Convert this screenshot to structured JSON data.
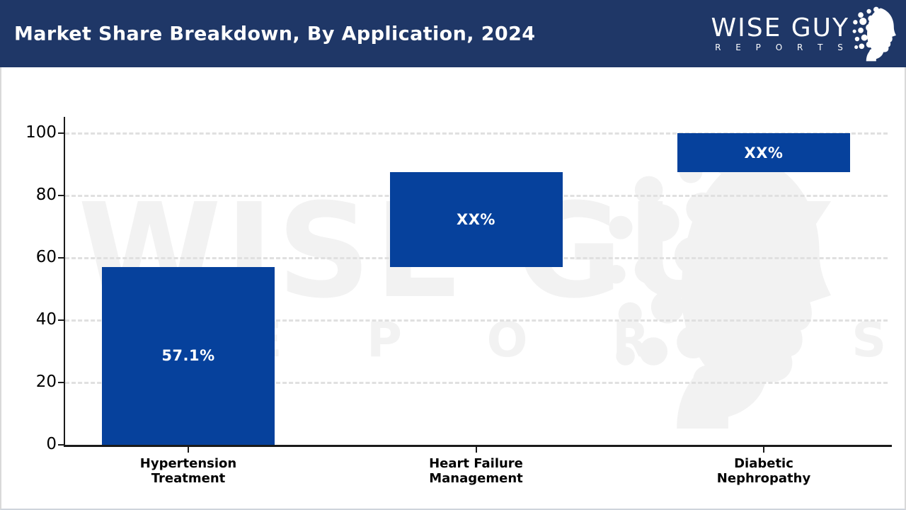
{
  "header": {
    "title": "Market Share Breakdown, By Application, 2024",
    "logo": {
      "line1": "WISE GUY",
      "line2": "R E P O R T S",
      "head_icon": "dotted-head-profile"
    }
  },
  "watermark": {
    "line1": "WISE GUY",
    "line2": "R E P O R T S",
    "head_icon": "dotted-head-profile"
  },
  "colors": {
    "header_bg": "#1f3767",
    "bar": "#06419c",
    "bar_label_text": "#ffffff",
    "watermark": "#f2f2f2",
    "gridline": "#e0e0e0",
    "axis": "#1a1a1a"
  },
  "chart_data": {
    "type": "bar",
    "subtype": "waterfall",
    "title": "Market Share Breakdown, By Application, 2024",
    "xlabel": "",
    "ylabel": "",
    "categories": [
      "Hypertension\nTreatment",
      "Heart Failure\nManagement",
      "Diabetic\nNephropathy"
    ],
    "segments": [
      {
        "category": "Hypertension\nTreatment",
        "start": 0,
        "end": 57.1,
        "value": 57.1,
        "label": "57.1%"
      },
      {
        "category": "Heart Failure\nManagement",
        "start": 57.1,
        "end": 87.4,
        "value": 30.3,
        "label": "XX%"
      },
      {
        "category": "Diabetic\nNephropathy",
        "start": 87.4,
        "end": 100,
        "value": 12.6,
        "label": "XX%"
      }
    ],
    "yticks": [
      0,
      20,
      40,
      60,
      80,
      100
    ],
    "ylim": [
      0,
      105
    ],
    "grid": "horizontal-dashed",
    "legend": "none",
    "bar_color": "#06419c"
  }
}
